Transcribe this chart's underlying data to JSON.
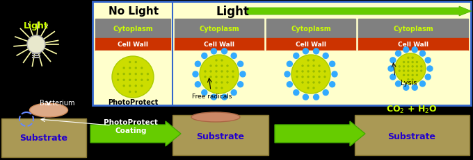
{
  "bg_color": "#000000",
  "fig_width": 6.8,
  "fig_height": 2.32,
  "top_panel_bg": "#ffffcc",
  "top_panel_border": "#3366cc",
  "cytoplasm_color": "#808080",
  "cellwall_color": "#cc3300",
  "photoprotect_color": "#ccdd00",
  "photoprotect_dot_color": "#33aaff",
  "substrate_color": "#aa9955",
  "substrate_text_color": "#2200cc",
  "light_arrow_color": "#66cc00",
  "cytoplasm_text": "Cytoplasm",
  "cellwall_text": "Cell Wall",
  "no_light_text": "No Light",
  "light_text": "Light",
  "photoprotect_text": "PhotoProtect",
  "free_radicals_text": "Free radicals",
  "lysis_text": "Lysis",
  "substrate_text": "Substrate",
  "photoprotect_coating_text": "PhotoProtect\nCoating",
  "co2_text": "CO$_2$ + H$_2$O",
  "bacterium_text": "Bacterium",
  "light_label": "Light"
}
